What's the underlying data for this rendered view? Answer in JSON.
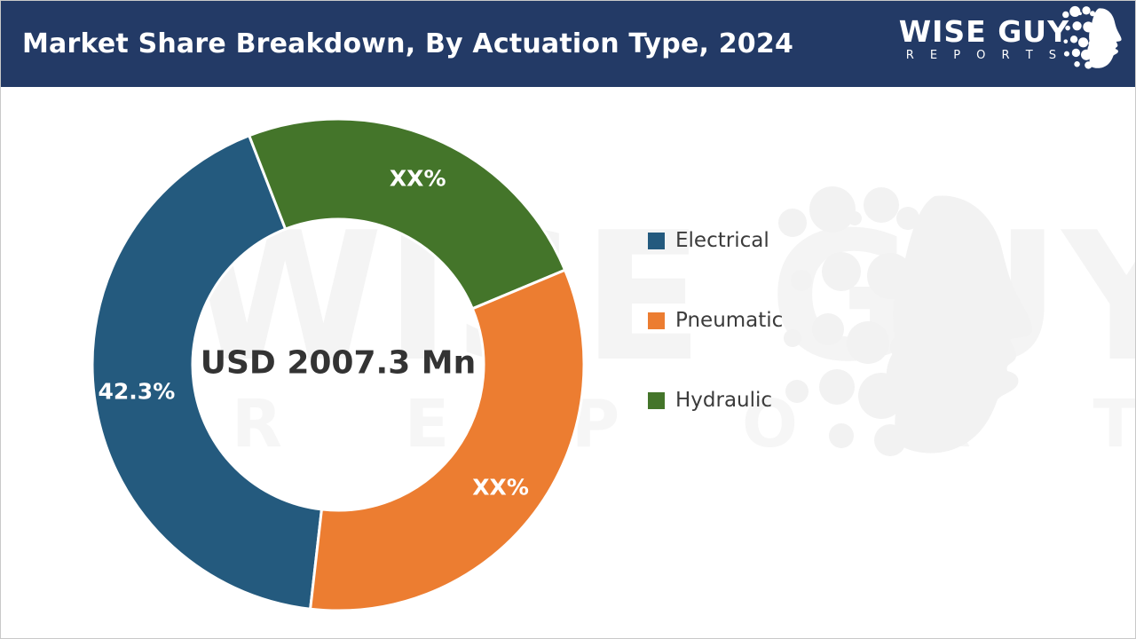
{
  "header": {
    "bg_color": "#233a66",
    "title": "Market Share Breakdown, By Actuation Type, 2024",
    "logo": {
      "line1": "WISE GUY",
      "line2": "R E P O R T S"
    }
  },
  "watermark": {
    "line1": "WISE GUY",
    "line2": "R E P O R T S"
  },
  "chart_data": {
    "type": "pie",
    "subtype": "donut",
    "title": "Market Share Breakdown, By Actuation Type, 2024",
    "center_label": "USD 2007.3 Mn",
    "start_angle_deg": 186.5,
    "direction": "clockwise",
    "inner_radius_ratio": 0.59,
    "segments": [
      {
        "name": "Electrical",
        "value_pct": 42.3,
        "data_label": "42.3%",
        "color": "#245a7e"
      },
      {
        "name": "Hydraulic",
        "value_pct": 24.6,
        "data_label": "XX%",
        "color": "#44752a"
      },
      {
        "name": "Pneumatic",
        "value_pct": 33.1,
        "data_label": "XX%",
        "color": "#ec7d31"
      }
    ],
    "legend": {
      "position": "right-middle",
      "items": [
        {
          "label": "Electrical",
          "color": "#245a7e"
        },
        {
          "label": "Pneumatic",
          "color": "#ec7d31"
        },
        {
          "label": "Hydraulic",
          "color": "#44752a"
        }
      ]
    }
  }
}
